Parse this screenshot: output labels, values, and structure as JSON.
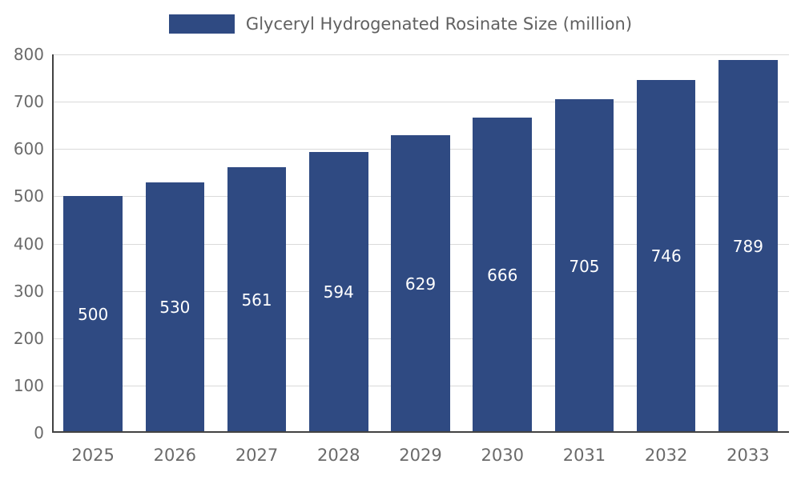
{
  "chart_data": {
    "type": "bar",
    "title": "Glyceryl Hydrogenated Rosinate Size (million)",
    "categories": [
      "2025",
      "2026",
      "2027",
      "2028",
      "2029",
      "2030",
      "2031",
      "2032",
      "2033"
    ],
    "values": [
      500,
      530,
      561,
      594,
      629,
      666,
      705,
      746,
      789
    ],
    "xlabel": "",
    "ylabel": "",
    "ylim": [
      0,
      800
    ],
    "ytick_step": 100,
    "grid": true,
    "legend_position": "top-center",
    "bar_color": "#2F4A82",
    "bar_label_color": "#ffffff",
    "axis_text_color": "#6a6a6a",
    "gridline_color": "#dadada"
  }
}
